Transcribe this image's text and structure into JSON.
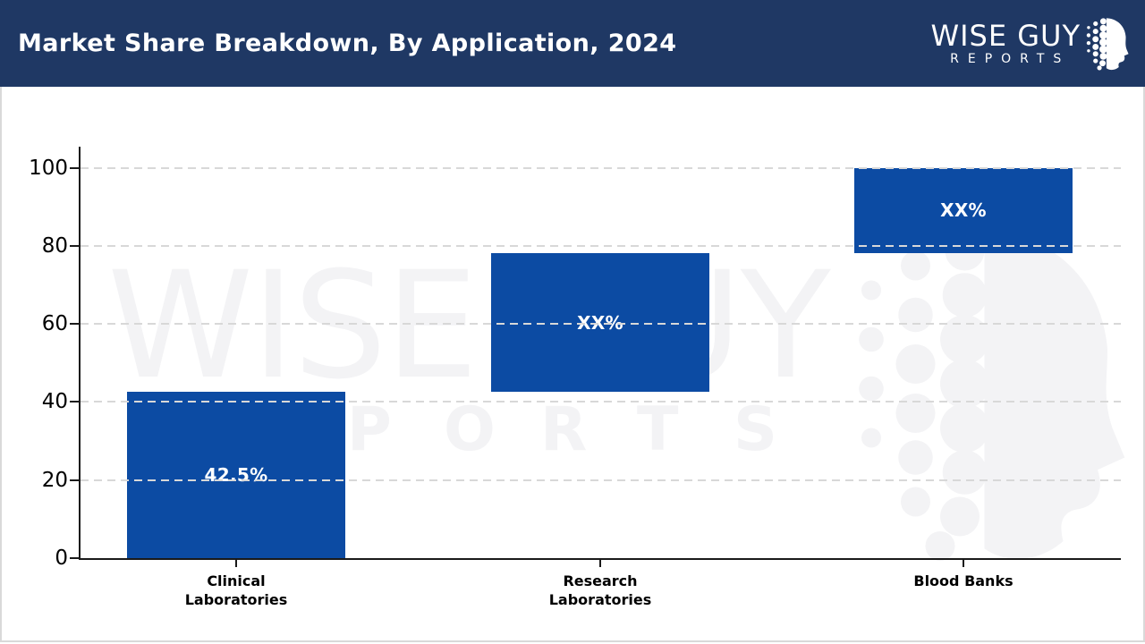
{
  "header": {
    "title": "Market Share Breakdown, By Application, 2024",
    "logo": {
      "line1": "WISE GUY",
      "line2": "REPORTS"
    }
  },
  "watermark": {
    "row1": "WISE GUY",
    "row2_letters": [
      "R",
      "E",
      "P",
      "O",
      "R",
      "T",
      "S"
    ]
  },
  "chart_data": {
    "type": "bar",
    "subtype": "waterfall",
    "title": "Market Share Breakdown, By Application, 2024",
    "categories": [
      "Clinical Laboratories",
      "Research Laboratories",
      "Blood Banks"
    ],
    "xtick_lines": [
      [
        "Clinical",
        "Laboratories"
      ],
      [
        "Research",
        "Laboratories"
      ],
      [
        "Blood Banks"
      ]
    ],
    "segments": [
      {
        "category": "Clinical Laboratories",
        "start": 0,
        "end": 42.5,
        "label": "42.5%"
      },
      {
        "category": "Research Laboratories",
        "start": 42.5,
        "end": 78.2,
        "label": "XX%"
      },
      {
        "category": "Blood Banks",
        "start": 78.2,
        "end": 100,
        "label": "XX%"
      }
    ],
    "yticks": [
      0,
      20,
      40,
      60,
      80,
      100
    ],
    "ylim": [
      0,
      105
    ],
    "grid": "horizontal-dashed",
    "legend": "none"
  },
  "colors": {
    "header_bg": "#1f3864",
    "header_text": "#ffffff",
    "bar": "#0c4ba3",
    "bar_label": "#ffffff",
    "grid": "#d8d8d8",
    "axis": "#1a1a1a",
    "tick_text": "#000000",
    "watermark": "#f3f3f5",
    "panel_border": "#d9d9d9"
  }
}
